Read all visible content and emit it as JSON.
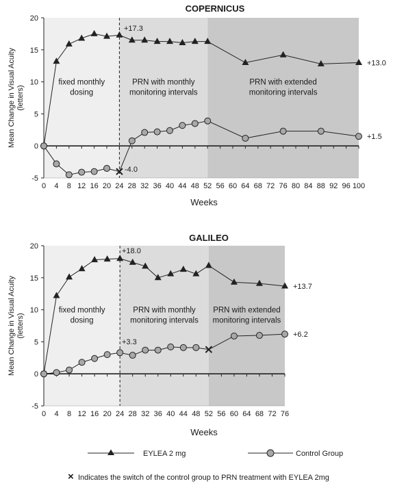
{
  "chart_data": [
    {
      "type": "line",
      "title": "COPERNICUS",
      "ylabel": "Mean Change in Visual Acuity (letters)",
      "xlabel": "Weeks",
      "ylim": [
        -5,
        20
      ],
      "yticks": [
        -5,
        0,
        5,
        10,
        15,
        20
      ],
      "xticks": [
        0,
        4,
        8,
        12,
        16,
        20,
        24,
        28,
        32,
        36,
        40,
        44,
        48,
        52,
        56,
        60,
        64,
        68,
        72,
        76,
        80,
        84,
        88,
        92,
        96,
        100
      ],
      "xlim": [
        0,
        100
      ],
      "switch_week": 24,
      "regions": [
        {
          "from": 0,
          "to": 24,
          "label_lines": [
            "fixed monthly",
            "dosing"
          ],
          "color": "#efefef"
        },
        {
          "from": 24,
          "to": 52,
          "label_lines": [
            "PRN with monthly",
            "monitoring intervals"
          ],
          "color": "#dcdcdc"
        },
        {
          "from": 52,
          "to": 100,
          "label_lines": [
            "PRN with extended",
            "monitoring intervals"
          ],
          "color": "#c8c8c8"
        }
      ],
      "series": [
        {
          "name": "EYLEA 2 mg",
          "marker": "triangle",
          "x": [
            0,
            4,
            8,
            12,
            16,
            20,
            24,
            28,
            32,
            36,
            40,
            44,
            48,
            52,
            64,
            76,
            88,
            100
          ],
          "y": [
            0,
            13.2,
            15.9,
            16.8,
            17.5,
            17.1,
            17.3,
            16.5,
            16.5,
            16.3,
            16.3,
            16.1,
            16.3,
            16.3,
            13.0,
            14.2,
            12.8,
            13.0
          ]
        },
        {
          "name": "Control Group",
          "marker": "circle",
          "switch_marker": true,
          "x": [
            0,
            4,
            8,
            12,
            16,
            20,
            24,
            28,
            32,
            36,
            40,
            44,
            48,
            52,
            64,
            76,
            88,
            100
          ],
          "y": [
            0,
            -2.8,
            -4.5,
            -4.1,
            -4.0,
            -3.5,
            -4.0,
            0.8,
            2.1,
            2.2,
            2.4,
            3.2,
            3.5,
            3.9,
            1.2,
            2.3,
            2.3,
            1.5
          ]
        }
      ],
      "annotations": [
        {
          "text": "+17.3",
          "x": 24,
          "y": 17.3
        },
        {
          "text": "-4.0",
          "x": 24,
          "y": -4.0
        },
        {
          "text": "+13.0",
          "x": 100,
          "y": 13.0
        },
        {
          "text": "+1.5",
          "x": 100,
          "y": 1.5
        }
      ]
    },
    {
      "type": "line",
      "title": "GALILEO",
      "ylabel": "Mean Change in Visual Acuity (letters)",
      "xlabel": "Weeks",
      "ylim": [
        -5,
        20
      ],
      "yticks": [
        -5,
        0,
        5,
        10,
        15,
        20
      ],
      "xticks": [
        0,
        4,
        8,
        12,
        16,
        20,
        24,
        28,
        32,
        36,
        40,
        44,
        48,
        52,
        56,
        60,
        64,
        68,
        72,
        76
      ],
      "xlim": [
        0,
        76
      ],
      "switch_week": 52,
      "regions": [
        {
          "from": 0,
          "to": 24,
          "label_lines": [
            "fixed monthly",
            "dosing"
          ],
          "color": "#efefef"
        },
        {
          "from": 24,
          "to": 52,
          "label_lines": [
            "PRN with monthly",
            "monitoring intervals"
          ],
          "color": "#dcdcdc"
        },
        {
          "from": 52,
          "to": 76,
          "label_lines": [
            "PRN with extended",
            "monitoring intervals"
          ],
          "color": "#c8c8c8"
        }
      ],
      "series": [
        {
          "name": "EYLEA 2 mg",
          "marker": "triangle",
          "x": [
            0,
            4,
            8,
            12,
            16,
            20,
            24,
            28,
            32,
            36,
            40,
            44,
            48,
            52,
            60,
            68,
            76
          ],
          "y": [
            0,
            12.2,
            15.1,
            16.4,
            17.8,
            17.9,
            18.0,
            17.4,
            16.8,
            15.0,
            15.6,
            16.3,
            15.6,
            16.9,
            14.3,
            14.1,
            13.7
          ]
        },
        {
          "name": "Control Group",
          "marker": "circle",
          "switch_marker": true,
          "x": [
            0,
            4,
            8,
            12,
            16,
            20,
            24,
            28,
            32,
            36,
            40,
            44,
            48,
            52,
            60,
            68,
            76
          ],
          "y": [
            0,
            0.2,
            0.6,
            1.8,
            2.4,
            3.0,
            3.3,
            2.9,
            3.7,
            3.7,
            4.2,
            4.1,
            4.1,
            3.8,
            5.9,
            6.0,
            6.2
          ]
        }
      ],
      "annotations": [
        {
          "text": "+18.0",
          "x": 24,
          "y": 18.0
        },
        {
          "text": "+3.3",
          "x": 24,
          "y": 3.3
        },
        {
          "text": "+13.7",
          "x": 76,
          "y": 13.7
        },
        {
          "text": "+6.2",
          "x": 76,
          "y": 6.2
        }
      ]
    }
  ],
  "legend": {
    "eylea": "EYLEA 2 mg",
    "control": "Control Group",
    "note_symbol": "×",
    "note": "Indicates the switch of the control group to PRN treatment with EYLEA 2mg"
  },
  "colors": {
    "line": "#222222",
    "marker_fill_circle": "#a8a8a8",
    "marker_fill_triangle": "#222222"
  }
}
